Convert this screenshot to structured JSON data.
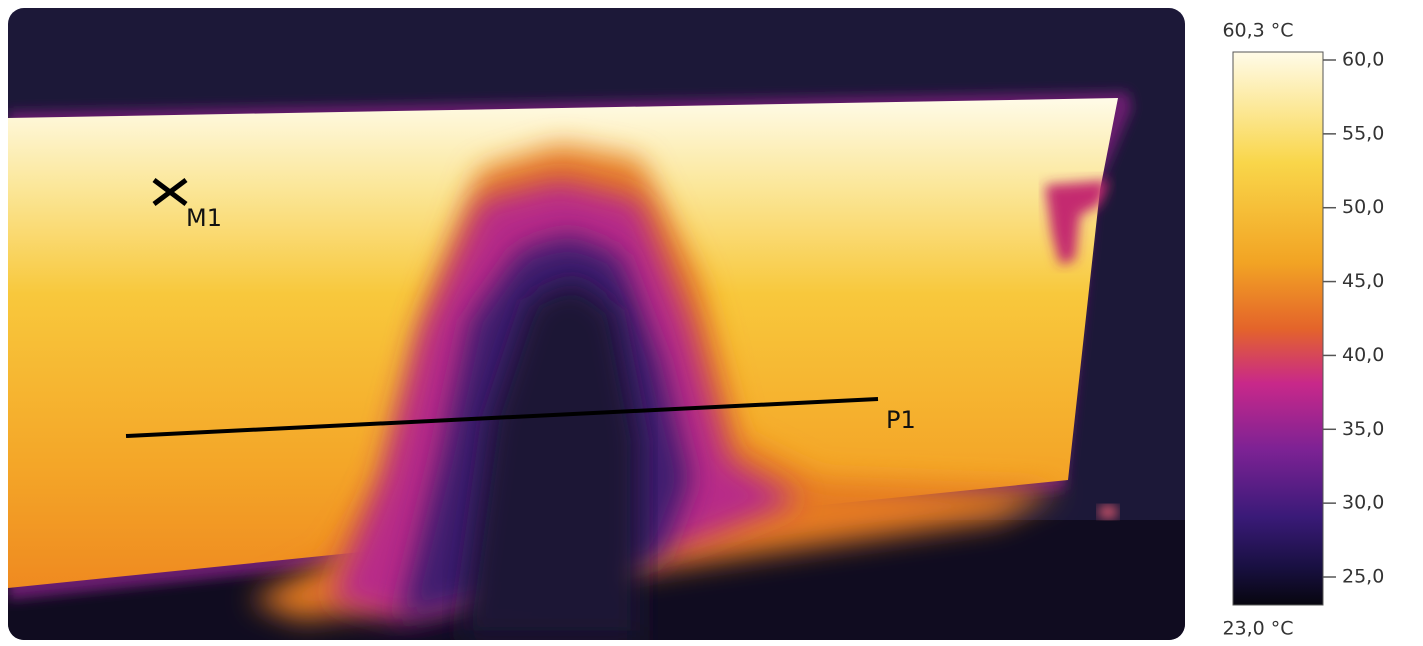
{
  "image": {
    "annotations": {
      "point": "M1",
      "line": "P1"
    }
  },
  "scale": {
    "max_label": "60,3 °C",
    "min_label": "23,0 °C",
    "ticks": [
      "60,0",
      "55,0",
      "50,0",
      "45,0",
      "40,0",
      "35,0",
      "30,0",
      "25,0"
    ]
  }
}
